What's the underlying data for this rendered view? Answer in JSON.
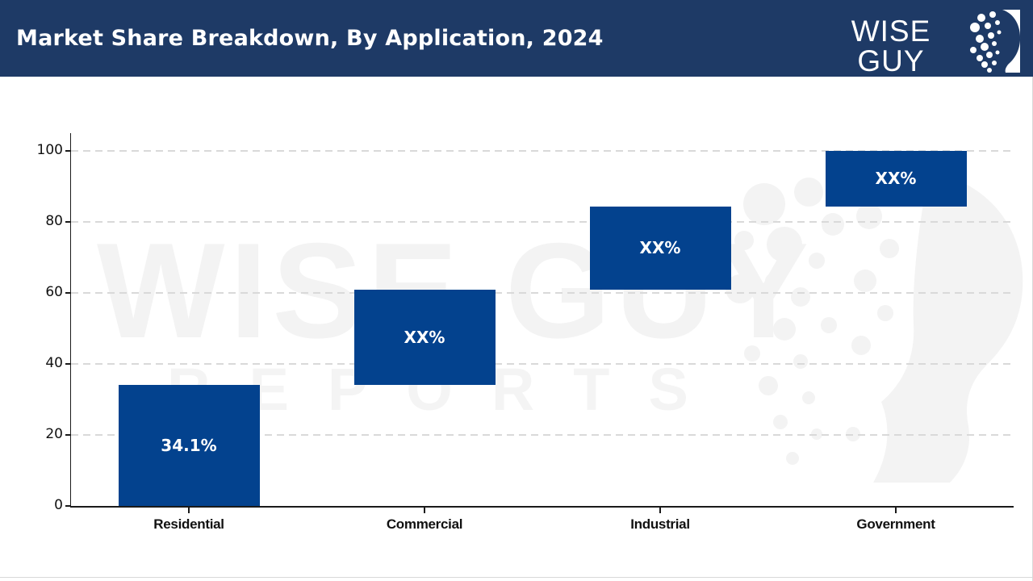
{
  "header": {
    "title": "Market Share Breakdown, By Application, 2024",
    "logo_line1": "WISE GUY",
    "logo_line2": "REPORTS"
  },
  "watermark": {
    "line1": "WISE GUY",
    "line2": "REPORTS"
  },
  "colors": {
    "header_bg": "#1e3a66",
    "bar_blue": "#03428e",
    "gridline": "#d9d9d9",
    "axis": "#1a1a1a",
    "watermark_gray": "#f3f3f3"
  },
  "chart_data": {
    "type": "bar",
    "subtype": "waterfall",
    "title": "Market Share Breakdown, By Application, 2024",
    "categories": [
      "Residential",
      "Commercial",
      "Industrial",
      "Government"
    ],
    "segments": [
      {
        "category": "Residential",
        "start": 0,
        "end": 34.1,
        "value": 34.1,
        "label": "34.1%"
      },
      {
        "category": "Commercial",
        "start": 34.1,
        "end": 61,
        "value": 26.9,
        "label": "XX%"
      },
      {
        "category": "Industrial",
        "start": 61,
        "end": 84.4,
        "value": 23.4,
        "label": "XX%"
      },
      {
        "category": "Government",
        "start": 84.4,
        "end": 100,
        "value": 15.6,
        "label": "XX%"
      }
    ],
    "yticks": [
      0,
      20,
      40,
      60,
      80,
      100
    ],
    "ylim": [
      0,
      105
    ],
    "xlabel": "",
    "ylabel": "",
    "grid": "horizontal-dashed",
    "legend": "none",
    "bar_color": "#03428e",
    "bar_label_color": "#ffffff"
  }
}
